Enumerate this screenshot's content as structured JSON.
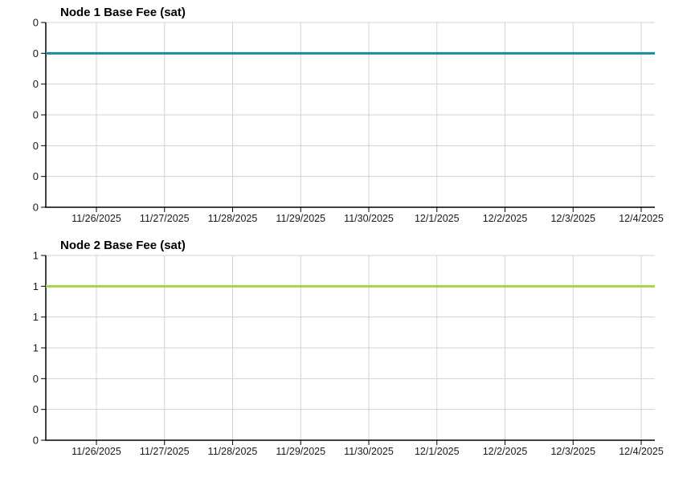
{
  "style": {
    "background": "#ffffff",
    "gridline_color": "#d3d3d3",
    "axis_color": "#000000",
    "tick_color": "#000000",
    "tick_label_color": "#1a1a1a",
    "title_color": "#000000"
  },
  "chart_data": [
    {
      "type": "line",
      "title": "Node 1 Base Fee (sat)",
      "xlabel": "",
      "ylabel": "",
      "grid": true,
      "legend_position": "none",
      "x_tick_labels": [
        "11/26/2025",
        "11/27/2025",
        "11/28/2025",
        "11/29/2025",
        "11/30/2025",
        "12/1/2025",
        "12/2/2025",
        "12/3/2025",
        "12/4/2025"
      ],
      "y_tick_labels": [
        "0",
        "0",
        "0",
        "0",
        "0",
        "0",
        "0"
      ],
      "series": [
        {
          "name": "Node 1 Base Fee (sat)",
          "color": "#1a8c9a",
          "values": [
            0,
            0,
            0,
            0,
            0,
            0,
            0,
            0,
            0
          ],
          "flat_line_y_tick_index": 1
        }
      ]
    },
    {
      "type": "line",
      "title": "Node 2 Base Fee (sat)",
      "xlabel": "",
      "ylabel": "",
      "grid": true,
      "legend_position": "none",
      "x_tick_labels": [
        "11/26/2025",
        "11/27/2025",
        "11/28/2025",
        "11/29/2025",
        "11/30/2025",
        "12/1/2025",
        "12/2/2025",
        "12/3/2025",
        "12/4/2025"
      ],
      "y_tick_labels": [
        "1",
        "1",
        "1",
        "1",
        "0",
        "0",
        "0"
      ],
      "series": [
        {
          "name": "Node 2 Base Fee (sat)",
          "color": "#a3d548",
          "values": [
            1,
            1,
            1,
            1,
            1,
            1,
            1,
            1,
            1
          ],
          "flat_line_y_tick_index": 1
        }
      ]
    }
  ]
}
